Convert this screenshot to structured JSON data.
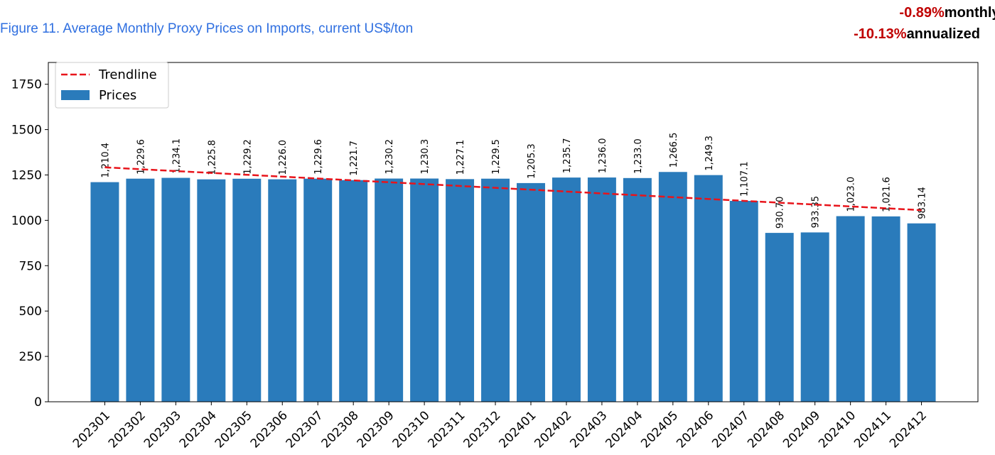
{
  "chart_data": {
    "type": "bar",
    "title": "Figure 11. Average Monthly Proxy Prices on Imports, current US$/ton",
    "annotations": [
      {
        "value": "-0.89%",
        "label": "monthly"
      },
      {
        "value": "-10.13%",
        "label": "annualized"
      }
    ],
    "categories": [
      "202301",
      "202302",
      "202303",
      "202304",
      "202305",
      "202306",
      "202307",
      "202308",
      "202309",
      "202310",
      "202311",
      "202312",
      "202401",
      "202402",
      "202403",
      "202404",
      "202405",
      "202406",
      "202407",
      "202408",
      "202409",
      "202410",
      "202411",
      "202412"
    ],
    "series": [
      {
        "name": "Prices",
        "color": "#2a7bbb",
        "values": [
          1210.4,
          1229.6,
          1234.1,
          1225.8,
          1229.2,
          1226.0,
          1229.6,
          1221.7,
          1230.2,
          1230.3,
          1227.1,
          1229.5,
          1205.3,
          1235.7,
          1236.0,
          1233.0,
          1266.5,
          1249.3,
          1107.1,
          930.7,
          933.35,
          1023.0,
          1021.6,
          983.14
        ],
        "value_labels": [
          "1,210.4",
          "1,229.6",
          "1,234.1",
          "1,225.8",
          "1,229.2",
          "1,226.0",
          "1,229.6",
          "1,221.7",
          "1,230.2",
          "1,230.3",
          "1,227.1",
          "1,229.5",
          "1,205.3",
          "1,235.7",
          "1,236.0",
          "1,233.0",
          "1,266.5",
          "1,249.3",
          "1,107.1",
          "930.70",
          "933.35",
          "1,023.0",
          "1,021.6",
          "983.14"
        ]
      },
      {
        "name": "Trendline",
        "type": "line",
        "color": "#e8141b",
        "values": [
          1292.0,
          1281.7,
          1271.5,
          1261.2,
          1251.0,
          1240.7,
          1230.4,
          1220.2,
          1209.9,
          1199.7,
          1189.4,
          1179.1,
          1168.9,
          1158.6,
          1148.4,
          1138.1,
          1127.8,
          1117.6,
          1107.3,
          1097.1,
          1086.8,
          1076.5,
          1066.3,
          1056.0
        ]
      }
    ],
    "ylim": [
      0,
      1870
    ],
    "yticks": [
      0,
      250,
      500,
      750,
      1000,
      1250,
      1500,
      1750
    ],
    "legend": "upper left"
  }
}
